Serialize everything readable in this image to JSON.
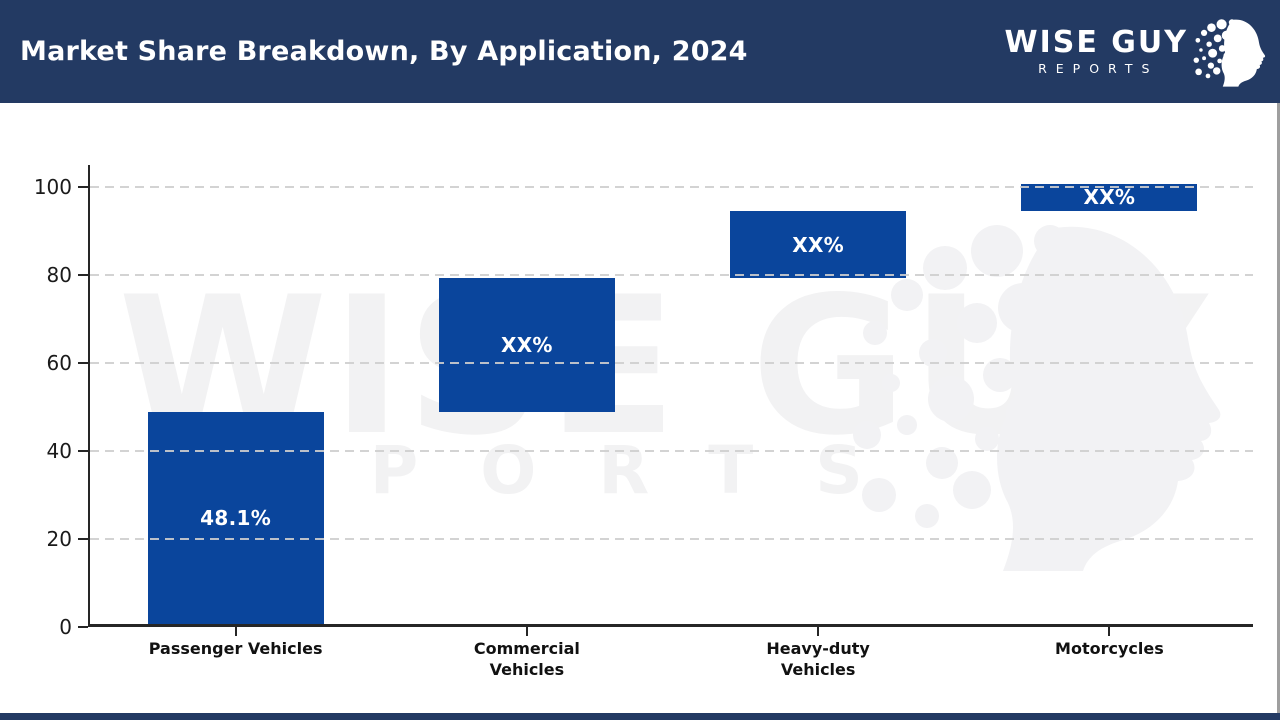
{
  "header": {
    "title": "Market Share Breakdown, By Application, 2024",
    "logo": {
      "line1": "WISE GUY",
      "line2": "REPORTS"
    }
  },
  "watermark": {
    "line1": "WISE GUY",
    "line2": "REPORTS"
  },
  "chart_data": {
    "type": "bar",
    "subtype": "stacked-waterfall",
    "title": "Market Share Breakdown, By Application, 2024",
    "categories": [
      "Passenger Vehicles",
      "Commercial\nVehicles",
      "Heavy-duty\nVehicles",
      "Motorcycles"
    ],
    "segments": [
      {
        "category": "Passenger Vehicles",
        "start": 0,
        "end": 48.1,
        "size": 48.1,
        "label": "48.1%"
      },
      {
        "category": "Commercial Vehicles",
        "start": 48.1,
        "end": 78.6,
        "size": 30.5,
        "label": "XX%"
      },
      {
        "category": "Heavy-duty Vehicles",
        "start": 78.6,
        "end": 93.9,
        "size": 15.3,
        "label": "XX%"
      },
      {
        "category": "Motorcycles",
        "start": 93.9,
        "end": 100,
        "size": 6.1,
        "label": "XX%"
      }
    ],
    "ylim": [
      0,
      100
    ],
    "yticks": [
      0,
      20,
      40,
      60,
      80,
      100
    ],
    "xlabel": "",
    "ylabel": "",
    "grid": {
      "axis": "y",
      "style": "dashed",
      "color": "#cecece",
      "above_bars": true
    },
    "legend": "none",
    "bar_color": "#0a459c",
    "bar_label_color": "#ffffff",
    "axis_color": "#262626",
    "tick_label_color": "#1a1a1a"
  },
  "colors": {
    "header_bg": "#233a63",
    "footer_bg": "#233a63",
    "page_bg": "#ffffff",
    "watermark": "#f2f2f3"
  }
}
